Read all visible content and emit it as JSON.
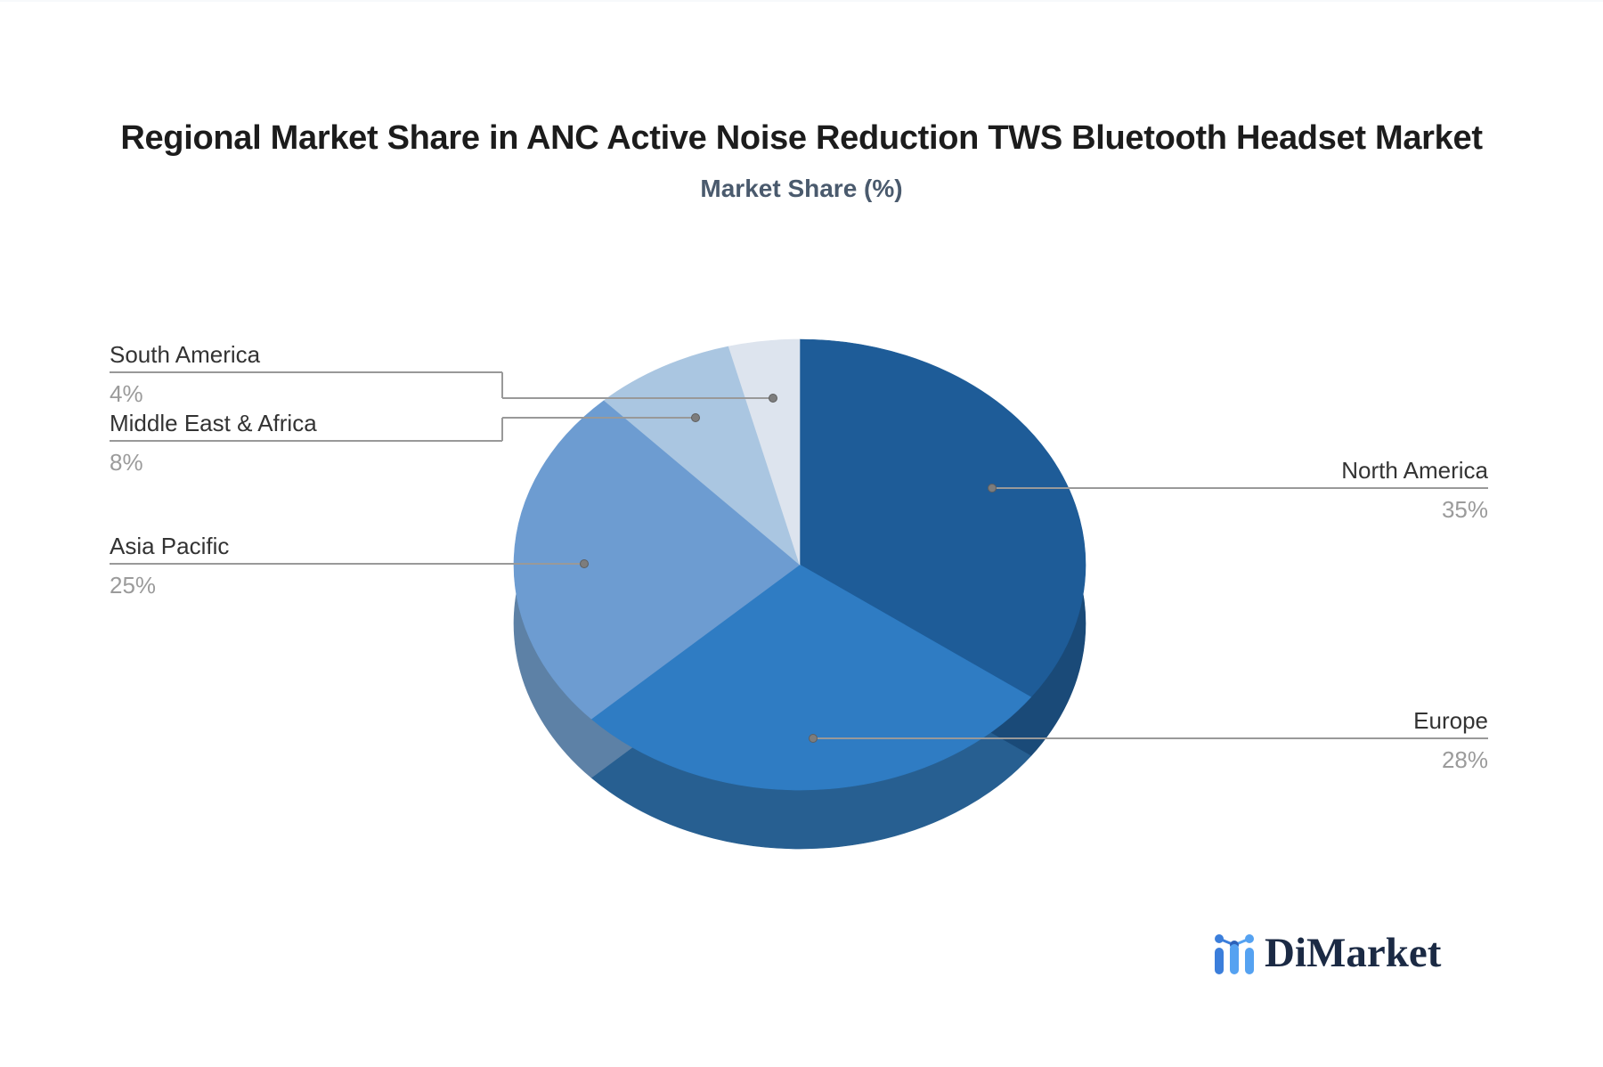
{
  "header": {
    "title": "Regional Market Share in ANC Active Noise Reduction TWS Bluetooth Headset Market",
    "subtitle": "Market Share (%)"
  },
  "brand": {
    "name": "DiMarket"
  },
  "chart_data": {
    "type": "pie",
    "title": "Regional Market Share in ANC Active Noise Reduction TWS Bluetooth Headset Market",
    "subtitle": "Market Share (%)",
    "unit": "%",
    "style": "3d-pie",
    "start_angle_deg": 0,
    "direction": "clockwise",
    "legend_position": "callout-labels",
    "slices": [
      {
        "label": "North America",
        "value": 35,
        "pct_label": "35%",
        "color": "#1e5c98",
        "side_color": "#1a4a78"
      },
      {
        "label": "Europe",
        "value": 28,
        "pct_label": "28%",
        "color": "#2f7cc3",
        "side_color": "#275f91"
      },
      {
        "label": "Asia Pacific",
        "value": 25,
        "pct_label": "25%",
        "color": "#6d9cd1",
        "side_color": "#5d81a6"
      },
      {
        "label": "Middle East & Africa",
        "value": 8,
        "pct_label": "8%",
        "color": "#aac6e1",
        "side_color": "#8aa8c4"
      },
      {
        "label": "South America",
        "value": 4,
        "pct_label": "4%",
        "color": "#dde4ee",
        "side_color": "#b9c2d1"
      }
    ],
    "callout_line_color": "#999999",
    "label_text_color": "#333333",
    "pct_text_color": "#9b9b9b"
  }
}
